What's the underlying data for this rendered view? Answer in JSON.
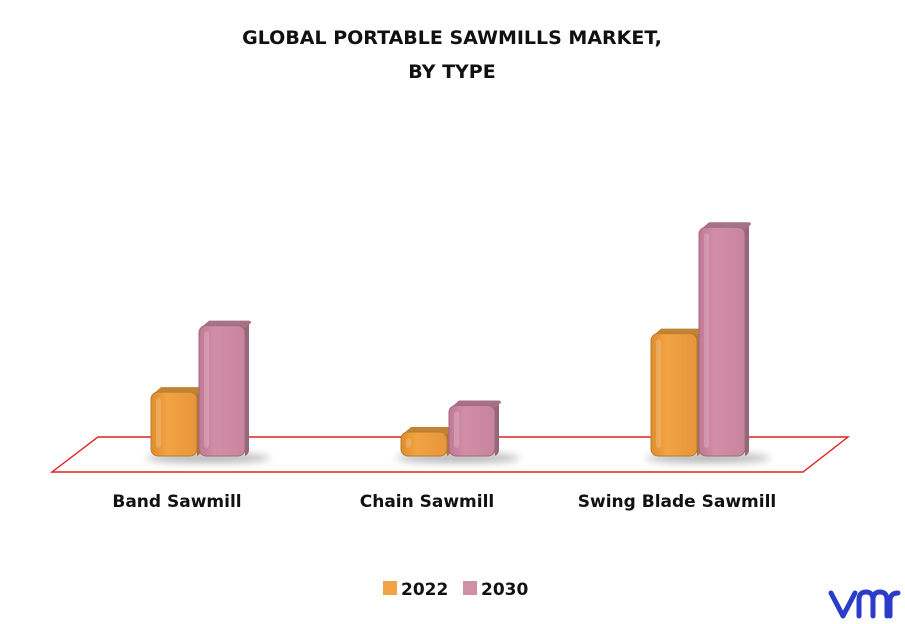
{
  "chart_data": {
    "type": "bar",
    "title": "GLOBAL PORTABLE SAWMILLS MARKET,",
    "subtitle": "BY TYPE",
    "categories": [
      "Band Sawmill",
      "Chain Sawmill",
      "Swing Blade Sawmill"
    ],
    "series": [
      {
        "name": "2022",
        "values": [
          2.4,
          0.9,
          4.6
        ],
        "color": "#F2A444"
      },
      {
        "name": "2030",
        "values": [
          4.9,
          1.9,
          8.6
        ],
        "color": "#D18FA7"
      }
    ],
    "ylim": [
      0,
      10
    ],
    "grid": false,
    "legend_position": "bottom-center",
    "xlabel": "",
    "ylabel": ""
  },
  "colors": {
    "floor_outline": "#E0201F",
    "logo": "#2B3CC9"
  },
  "logo": {
    "icon": "vmr-logo",
    "text": "vmr"
  }
}
